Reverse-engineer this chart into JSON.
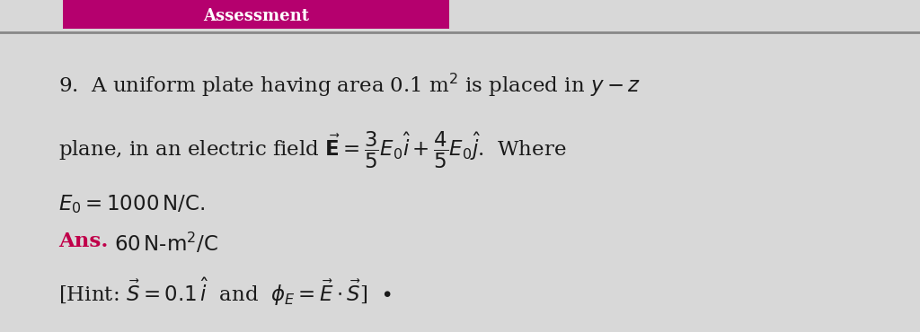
{
  "body_bg": "#d8d8d8",
  "header_bg": "#b5006e",
  "header_text": "Assessment",
  "sep_line_color": "#888888",
  "text_color": "#1a1a1a",
  "ans_color": "#c0004a",
  "figsize": [
    10.24,
    3.7
  ],
  "dpi": 100,
  "line1": "9.  A uniform plate having area 0.1 m$^2$ is placed in $y-z$",
  "line2_pre": "plane, in an electric field ",
  "line2_math": "$\\vec{\\mathbf{E}}=\\dfrac{3}{5}E_0\\hat{i}+\\dfrac{4}{5}E_0\\hat{j}$.",
  "line2_post": "  Where",
  "line3": "$E_0=1000\\,\\mathrm{N/C}.$",
  "ans_label": "Ans.",
  "ans_value": "$60\\,\\mathrm{N\\text{-}m^2/C}$",
  "hint": "[Hint: $\\vec{S}=0.1\\,\\hat{i}$  and  $\\phi_E=\\vec{E}\\cdot\\vec{S}$]",
  "bullet": "  $\\bullet$"
}
